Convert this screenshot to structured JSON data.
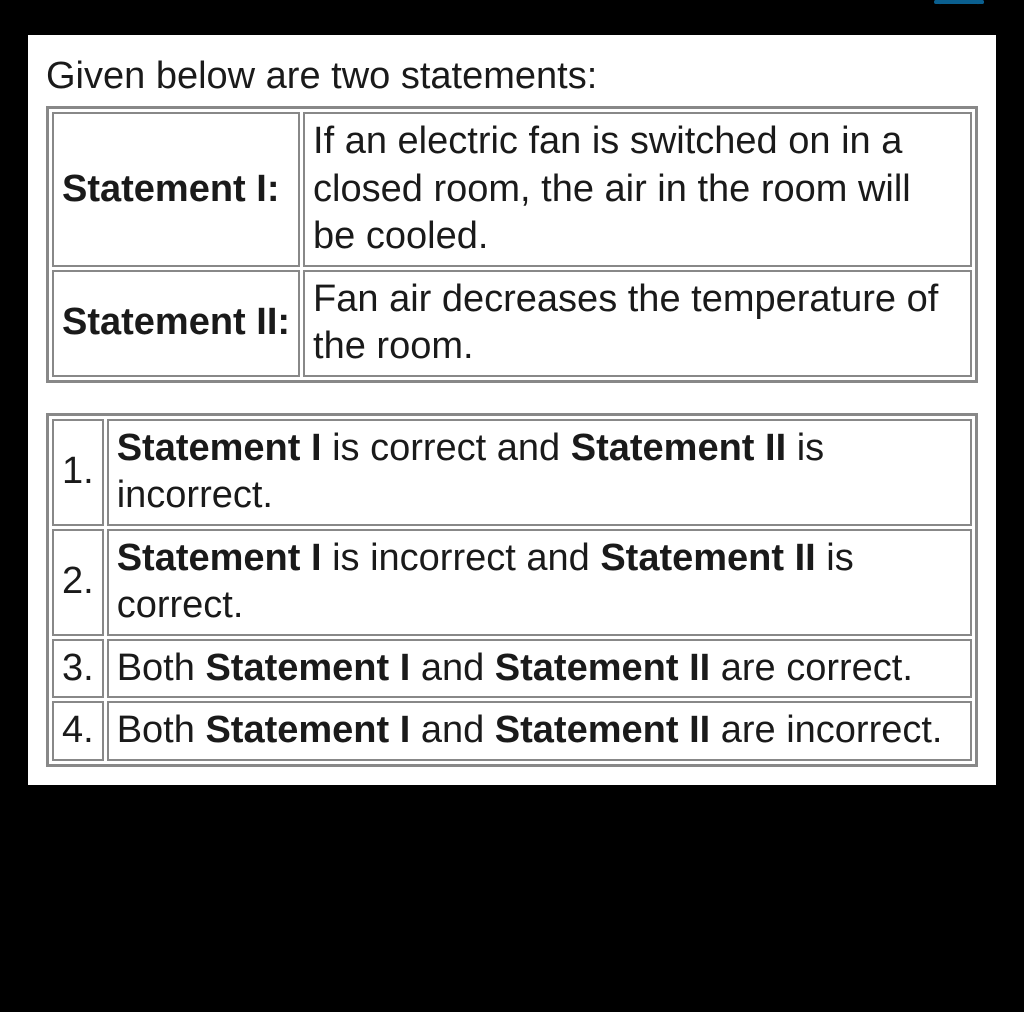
{
  "colors": {
    "page_bg": "#000000",
    "card_bg": "#ffffff",
    "table_border": "#888888",
    "text": "#1a1a1a",
    "warning_stroke": "#0a5f8f"
  },
  "typography": {
    "base_fontsize_pt": 29,
    "bold_weight": 700,
    "regular_weight": 400
  },
  "intro": "Given below are two statements:",
  "statements_table": {
    "type": "table",
    "border_color": "#888888",
    "rows": [
      {
        "label": "Statement I:",
        "text": "If an electric fan is switched on in a closed room, the air in the room will be cooled."
      },
      {
        "label": "Statement II:",
        "text": "Fan air decreases the temperature of the room."
      }
    ]
  },
  "options_table": {
    "type": "table",
    "border_color": "#888888",
    "rows": [
      {
        "num": "1.",
        "segments": [
          {
            "t": "Statement I",
            "bold": true
          },
          {
            "t": " is correct and ",
            "bold": false
          },
          {
            "t": "Statement II",
            "bold": true
          },
          {
            "t": " is incorrect.",
            "bold": false
          }
        ]
      },
      {
        "num": "2.",
        "segments": [
          {
            "t": "Statement I",
            "bold": true
          },
          {
            "t": " is incorrect and ",
            "bold": false
          },
          {
            "t": "Statement II",
            "bold": true
          },
          {
            "t": " is correct.",
            "bold": false
          }
        ]
      },
      {
        "num": "3.",
        "segments": [
          {
            "t": "Both ",
            "bold": false
          },
          {
            "t": "Statement I",
            "bold": true
          },
          {
            "t": " and ",
            "bold": false
          },
          {
            "t": "Statement II",
            "bold": true
          },
          {
            "t": " are correct.",
            "bold": false
          }
        ]
      },
      {
        "num": "4.",
        "segments": [
          {
            "t": "Both ",
            "bold": false
          },
          {
            "t": "Statement I",
            "bold": true
          },
          {
            "t": " and ",
            "bold": false
          },
          {
            "t": "Statement II",
            "bold": true
          },
          {
            "t": " are incorrect.",
            "bold": false
          }
        ]
      }
    ]
  },
  "warning_icon": {
    "name": "warning-triangle",
    "stroke": "#0a5f8f"
  }
}
